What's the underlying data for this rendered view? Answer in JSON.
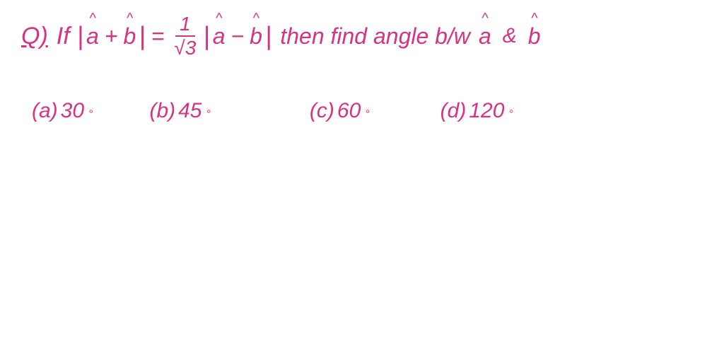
{
  "colors": {
    "ink": "#d63384",
    "background": "#ffffff"
  },
  "question": {
    "prefix": "Q)",
    "if_word": "If",
    "lbar1": "|",
    "a_hat1": "a",
    "plus": "+",
    "b_hat1": "b",
    "rbar1": "|",
    "equals": "=",
    "frac_num": "1",
    "sqrt_sym": "√",
    "frac_den_val": "3",
    "lbar2": "|",
    "a_hat2": "a",
    "minus": "−",
    "b_hat2": "b",
    "rbar2": "|",
    "then_text": "then find angle b/w",
    "a_hat3": "a",
    "amp": "&",
    "b_hat3": "b"
  },
  "options": {
    "a": {
      "label": "(a)",
      "value": "30",
      "degree": "°"
    },
    "b": {
      "label": "(b)",
      "value": "45",
      "degree": "°"
    },
    "c": {
      "label": "(c)",
      "value": "60",
      "degree": "°"
    },
    "d": {
      "label": "(d)",
      "value": "120",
      "degree": "°"
    }
  }
}
